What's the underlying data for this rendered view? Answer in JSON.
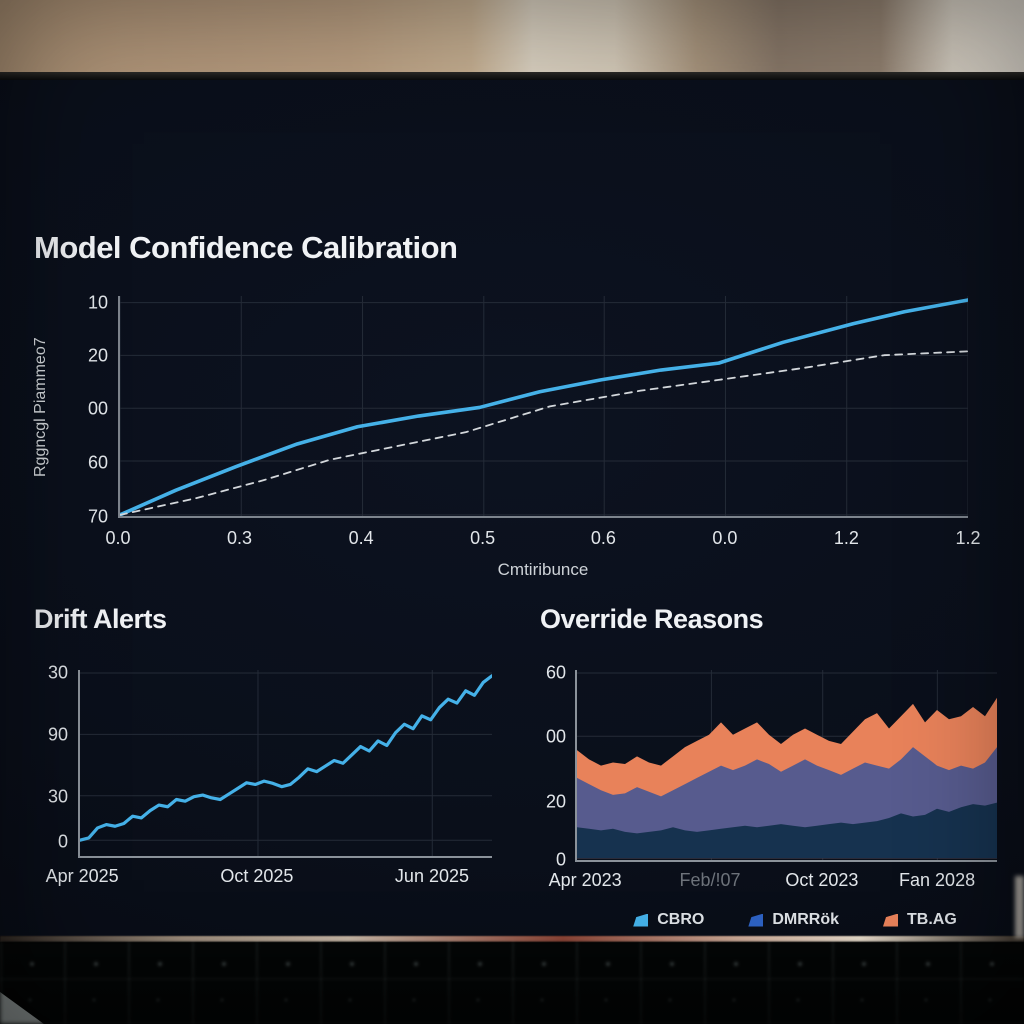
{
  "colors": {
    "accent_blue": "#45b1e8",
    "legend_blue": "#2d62c4",
    "orange": "#e8825a",
    "area_navy": "#16324f",
    "area_purple": "#575b8e",
    "dashed_line": "#d3d7db",
    "grid": "#242b37",
    "screen_bg": "#0a0f1a"
  },
  "calibration": {
    "title": "Model Confidence Calibration",
    "ylabel": "Rggncgl Piammeo7",
    "xlabel": "Cmtiribunce",
    "yticks": [
      {
        "label": "10",
        "f": 0.03
      },
      {
        "label": "20",
        "f": 0.27
      },
      {
        "label": "00",
        "f": 0.51
      },
      {
        "label": "60",
        "f": 0.75
      },
      {
        "label": "70",
        "f": 0.995
      }
    ],
    "xticks": [
      {
        "label": "0.0",
        "f": 0.0
      },
      {
        "label": "0.3",
        "f": 0.143
      },
      {
        "label": "0.4",
        "f": 0.286
      },
      {
        "label": "0.5",
        "f": 0.429
      },
      {
        "label": "0.6",
        "f": 0.571
      },
      {
        "label": "0.0",
        "f": 0.714
      },
      {
        "label": "1.2",
        "f": 0.857
      },
      {
        "label": "1.2",
        "f": 1.0
      }
    ]
  },
  "drift": {
    "title": "Drift Alerts",
    "yticks": [
      {
        "label": "30",
        "f": 0.016
      },
      {
        "label": "90",
        "f": 0.346
      },
      {
        "label": "30",
        "f": 0.676
      },
      {
        "label": "0",
        "f": 0.915
      }
    ],
    "xticks": [
      {
        "label": "Apr 2025",
        "f": 0.01
      },
      {
        "label": "Oct 2025",
        "f": 0.432
      },
      {
        "label": "Jun 2025",
        "f": 0.855
      }
    ]
  },
  "override": {
    "title": "Override Reasons",
    "yticks": [
      {
        "label": "60",
        "f": 0.016
      },
      {
        "label": "00",
        "f": 0.349
      },
      {
        "label": "20",
        "f": 0.688
      },
      {
        "label": "0",
        "f": 0.99
      }
    ],
    "xticks": [
      {
        "label": "Apr 2023",
        "f": 0.024
      },
      {
        "label": "Feb/!07",
        "f": 0.32,
        "dim": true
      },
      {
        "label": "Oct 2023",
        "f": 0.585
      },
      {
        "label": "Fan 2028",
        "f": 0.858
      }
    ]
  },
  "legend": {
    "items": [
      {
        "label": "CBRO",
        "color": "#45b1e8"
      },
      {
        "label": "DMRRök",
        "color": "#2d62c4"
      },
      {
        "label": "TB.AG",
        "color": "#e8825a"
      }
    ]
  },
  "chart_data": [
    {
      "type": "line",
      "title": "Model Confidence Calibration",
      "xlabel": "Cmtiribunce",
      "ylabel": "Rggncgl Piammeo7",
      "xtick_labels": [
        "0.0",
        "0.3",
        "0.4",
        "0.5",
        "0.6",
        "0.0",
        "1.2",
        "1.2"
      ],
      "ytick_labels_top_to_bottom": [
        "10",
        "20",
        "00",
        "60",
        "70"
      ],
      "grid": true,
      "legend_position": "none",
      "note": "tick labels are garbled in source image; series points normalized, x 0-1 left-right, y 0-1 bottom-top of plot",
      "series": [
        {
          "name": "model-curve",
          "color": "#45b1e8",
          "style": "solid",
          "points": [
            [
              0,
              0
            ],
            [
              0.066,
              0.115
            ],
            [
              0.137,
              0.225
            ],
            [
              0.209,
              0.33
            ],
            [
              0.28,
              0.41
            ],
            [
              0.352,
              0.46
            ],
            [
              0.424,
              0.5
            ],
            [
              0.495,
              0.573
            ],
            [
              0.567,
              0.628
            ],
            [
              0.638,
              0.674
            ],
            [
              0.706,
              0.706
            ],
            [
              0.782,
              0.803
            ],
            [
              0.865,
              0.89
            ],
            [
              0.925,
              0.945
            ],
            [
              1,
              1
            ]
          ]
        },
        {
          "name": "reference-dashed",
          "color": "#d3d7db",
          "style": "dashed",
          "points": [
            [
              0,
              0
            ],
            [
              0.09,
              0.078
            ],
            [
              0.169,
              0.161
            ],
            [
              0.248,
              0.257
            ],
            [
              0.328,
              0.321
            ],
            [
              0.408,
              0.385
            ],
            [
              0.507,
              0.505
            ],
            [
              0.614,
              0.578
            ],
            [
              0.706,
              0.628
            ],
            [
              0.805,
              0.683
            ],
            [
              0.901,
              0.743
            ],
            [
              1,
              0.761
            ]
          ]
        }
      ]
    },
    {
      "type": "line",
      "title": "Drift Alerts",
      "xtick_labels": [
        "Apr 2025",
        "Oct 2025",
        "Jun 2025"
      ],
      "ytick_labels_top_to_bottom": [
        "30",
        "90",
        "30",
        "0"
      ],
      "color": "#45b1e8",
      "ylim": [
        0,
        30
      ],
      "grid": true,
      "values": [
        0,
        0.4,
        2.2,
        2.8,
        2.5,
        3,
        4.3,
        4,
        5.3,
        6.3,
        6,
        7.3,
        7,
        7.8,
        8.1,
        7.6,
        7.3,
        8.3,
        9.3,
        10.3,
        10,
        10.6,
        10.2,
        9.6,
        10,
        11.3,
        12.8,
        12.3,
        13.3,
        14.3,
        13.8,
        15.3,
        16.8,
        16,
        17.8,
        17,
        19.3,
        20.8,
        20,
        22.3,
        21.6,
        23.8,
        25.3,
        24.6,
        26.8,
        26,
        28.3,
        29.5
      ]
    },
    {
      "type": "area",
      "stacked": true,
      "title": "Override Reasons",
      "xtick_labels": [
        "Apr 2023",
        "Feb/!07",
        "Oct 2023",
        "Fan 2028"
      ],
      "ytick_labels_top_to_bottom": [
        "60",
        "00",
        "20",
        "0"
      ],
      "ylim": [
        0,
        60
      ],
      "grid": true,
      "series": [
        {
          "name": "navy-layer",
          "color": "#16324f",
          "top": [
            10,
            9.5,
            9,
            9.5,
            8.5,
            8,
            8.5,
            9,
            10,
            9,
            8.5,
            9,
            9.5,
            10,
            10.5,
            10,
            10.5,
            11,
            10.5,
            10,
            10.5,
            11,
            11.5,
            11,
            11.5,
            12,
            13,
            14.5,
            13.5,
            14,
            16,
            15,
            16.5,
            17.5,
            17,
            18
          ]
        },
        {
          "name": "purple-layer",
          "color": "#575b8e",
          "top": [
            26,
            24,
            22,
            20.5,
            21,
            23,
            21.5,
            20,
            22,
            24,
            26,
            28,
            30,
            28.5,
            30,
            32,
            30.5,
            28,
            30,
            32,
            30,
            28.5,
            27,
            29,
            31,
            30,
            29,
            32,
            36,
            33,
            30,
            28.5,
            30,
            29,
            31,
            36
          ]
        },
        {
          "name": "orange-layer",
          "color": "#e8825a",
          "top": [
            35,
            32,
            30,
            31,
            30.5,
            33,
            31,
            30,
            33,
            36,
            38,
            40,
            44,
            40,
            42,
            44,
            40,
            37,
            40,
            42,
            40,
            38,
            37,
            41,
            45,
            47,
            42,
            46,
            50,
            44,
            48,
            45,
            46,
            49,
            46,
            52
          ]
        }
      ]
    }
  ]
}
